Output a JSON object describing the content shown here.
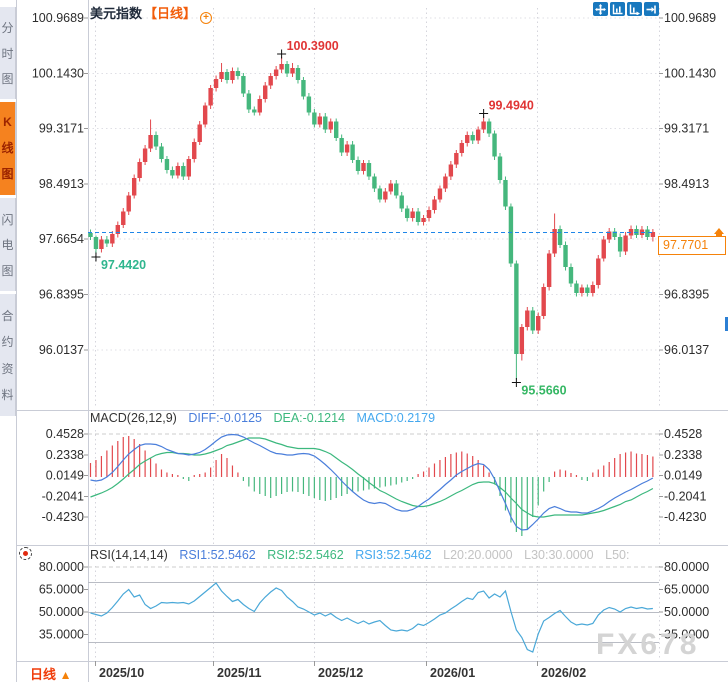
{
  "sidebar": {
    "tabs": [
      {
        "label": "分时图",
        "active": false
      },
      {
        "label": "K线图",
        "active": true
      },
      {
        "label": "闪电图",
        "active": false
      },
      {
        "label": "合约资料",
        "active": false
      }
    ]
  },
  "header": {
    "symbol": "美元指数",
    "period_tag": "【日线】"
  },
  "toolbar_icons": [
    "pan-icon",
    "axis-chart-icon",
    "axis-arrow-icon",
    "step-forward-icon"
  ],
  "bottom_bar": {
    "period_label": "日线",
    "months": [
      "2025/10",
      "2025/11",
      "2025/12",
      "2026/01",
      "2026/02"
    ]
  },
  "price_tag": {
    "value": "97.7701"
  },
  "watermark": "FX678",
  "colors": {
    "up": "#e2484d",
    "down": "#45b77d",
    "diff_line": "#4a7edb",
    "dea_line": "#3cb87e",
    "rsi_line": "#4aa8d8",
    "accent_orange": "#f5820a",
    "icon_blue": "#1878be",
    "annotation_up": "#e03535",
    "annotation_down": "#35b77e",
    "dashed_price_line": "#1e86e8"
  },
  "chart_data": {
    "type": "candlestick",
    "title": "美元指数",
    "period": "日线",
    "y_axis_labels": [
      "100.9689",
      "100.1430",
      "99.3171",
      "98.4913",
      "97.6654",
      "96.8395",
      "96.0137"
    ],
    "y_axis_values": [
      100.9689,
      100.143,
      99.3171,
      98.4913,
      97.6654,
      96.8395,
      96.0137
    ],
    "last_price": 97.7701,
    "annotations": [
      {
        "text": "100.3900",
        "index": 35,
        "price": 100.39,
        "side": "high",
        "color": "#e03535"
      },
      {
        "text": "99.4940",
        "index": 72,
        "price": 99.494,
        "side": "high",
        "color": "#e03535"
      },
      {
        "text": "97.4420",
        "index": 1,
        "price": 97.442,
        "side": "low",
        "color": "#2fb68e"
      },
      {
        "text": "95.5660",
        "index": 78,
        "price": 95.566,
        "side": "low",
        "color": "#35b764"
      }
    ],
    "candles": {
      "open": [
        97.76,
        97.7,
        97.52,
        97.66,
        97.6,
        97.74,
        97.88,
        98.08,
        98.32,
        98.58,
        98.82,
        99.02,
        99.22,
        99.05,
        98.86,
        98.7,
        98.62,
        98.76,
        98.6,
        98.86,
        99.12,
        99.38,
        99.66,
        99.92,
        100.06,
        100.16,
        100.04,
        100.18,
        100.1,
        99.84,
        99.6,
        99.56,
        99.76,
        99.96,
        100.1,
        100.2,
        100.28,
        100.14,
        100.22,
        100.04,
        99.8,
        99.56,
        99.38,
        99.5,
        99.3,
        99.42,
        99.18,
        98.96,
        99.08,
        98.85,
        98.68,
        98.8,
        98.6,
        98.42,
        98.26,
        98.38,
        98.5,
        98.32,
        98.12,
        97.98,
        98.08,
        97.92,
        97.98,
        98.1,
        98.26,
        98.42,
        98.6,
        98.78,
        98.95,
        99.1,
        99.22,
        99.14,
        99.3,
        99.42,
        99.24,
        98.9,
        98.55,
        98.15,
        97.3,
        95.95,
        96.35,
        96.6,
        96.3,
        96.52,
        96.95,
        97.45,
        97.82,
        97.58,
        97.25,
        97.0,
        96.86,
        96.94,
        96.86,
        96.98,
        97.38,
        97.66,
        97.78,
        97.7,
        97.48,
        97.72,
        97.82,
        97.73,
        97.81,
        97.7
      ],
      "high": [
        97.81,
        97.72,
        97.71,
        97.71,
        97.79,
        97.93,
        98.13,
        98.37,
        98.63,
        98.87,
        99.07,
        99.45,
        99.27,
        99.1,
        98.91,
        98.75,
        98.81,
        98.81,
        98.91,
        99.17,
        99.43,
        99.71,
        99.97,
        100.11,
        100.3,
        100.21,
        100.23,
        100.23,
        100.15,
        99.89,
        99.65,
        99.81,
        100.01,
        100.15,
        100.25,
        100.39,
        100.33,
        100.3,
        100.27,
        100.09,
        99.85,
        99.61,
        99.55,
        99.55,
        99.47,
        99.47,
        99.23,
        99.13,
        99.13,
        98.9,
        98.85,
        98.85,
        98.65,
        98.47,
        98.43,
        98.55,
        98.55,
        98.37,
        98.17,
        98.13,
        98.13,
        98.03,
        98.15,
        98.31,
        98.47,
        98.65,
        98.83,
        99.0,
        99.15,
        99.27,
        99.27,
        99.35,
        99.494,
        99.47,
        99.29,
        98.95,
        98.6,
        98.2,
        97.35,
        96.4,
        96.65,
        96.65,
        96.57,
        97.0,
        97.5,
        98.05,
        97.87,
        97.63,
        97.3,
        97.05,
        96.99,
        96.99,
        97.03,
        97.43,
        97.71,
        97.83,
        97.83,
        97.75,
        97.77,
        97.87,
        97.87,
        97.86,
        97.86,
        97.82
      ],
      "low": [
        97.65,
        97.442,
        97.47,
        97.55,
        97.55,
        97.69,
        97.83,
        98.03,
        98.27,
        98.53,
        98.77,
        98.97,
        99.0,
        98.81,
        98.65,
        98.57,
        98.57,
        98.55,
        98.55,
        98.81,
        99.07,
        99.33,
        99.61,
        99.87,
        100.01,
        99.99,
        99.99,
        100.05,
        99.79,
        99.55,
        99.51,
        99.51,
        99.71,
        99.91,
        100.05,
        100.15,
        100.09,
        100.09,
        99.99,
        99.75,
        99.51,
        99.33,
        99.33,
        99.25,
        99.25,
        99.13,
        98.91,
        98.91,
        98.8,
        98.63,
        98.63,
        98.55,
        98.37,
        98.21,
        98.21,
        98.33,
        98.27,
        98.07,
        97.93,
        97.93,
        97.87,
        97.87,
        97.93,
        98.05,
        98.21,
        98.37,
        98.55,
        98.73,
        98.9,
        99.05,
        99.09,
        99.09,
        99.25,
        99.19,
        98.85,
        98.5,
        98.1,
        97.25,
        95.566,
        95.85,
        96.3,
        96.25,
        96.25,
        96.47,
        96.9,
        97.4,
        97.53,
        97.2,
        96.95,
        96.81,
        96.81,
        96.81,
        96.81,
        96.93,
        97.33,
        97.61,
        97.65,
        97.4,
        97.43,
        97.67,
        97.68,
        97.68,
        97.65,
        97.63
      ],
      "close": [
        97.7,
        97.52,
        97.66,
        97.6,
        97.74,
        97.88,
        98.08,
        98.32,
        98.58,
        98.82,
        99.02,
        99.22,
        99.05,
        98.86,
        98.7,
        98.62,
        98.76,
        98.6,
        98.86,
        99.12,
        99.38,
        99.66,
        99.92,
        100.06,
        100.16,
        100.04,
        100.18,
        100.1,
        99.84,
        99.6,
        99.56,
        99.76,
        99.96,
        100.1,
        100.2,
        100.28,
        100.14,
        100.22,
        100.04,
        99.8,
        99.56,
        99.38,
        99.5,
        99.3,
        99.42,
        99.18,
        98.96,
        99.08,
        98.85,
        98.68,
        98.8,
        98.6,
        98.42,
        98.26,
        98.38,
        98.5,
        98.32,
        98.12,
        97.98,
        98.08,
        97.92,
        97.98,
        98.1,
        98.26,
        98.42,
        98.6,
        98.78,
        98.95,
        99.1,
        99.22,
        99.14,
        99.3,
        99.42,
        99.24,
        98.9,
        98.55,
        98.15,
        97.3,
        95.95,
        96.35,
        96.6,
        96.3,
        96.52,
        96.95,
        97.45,
        97.82,
        97.58,
        97.25,
        97.0,
        96.86,
        96.94,
        96.86,
        96.98,
        97.38,
        97.66,
        97.78,
        97.7,
        97.48,
        97.72,
        97.82,
        97.73,
        97.81,
        97.7,
        97.77
      ]
    },
    "macd": {
      "label": "MACD(26,12,9)",
      "diff_label": "DIFF:-0.0125",
      "dea_label": "DEA:-0.1214",
      "macd_label": "MACD:0.2179",
      "axis_labels": [
        "0.4528",
        "0.2338",
        "0.0149",
        "-0.2041",
        "-0.4230"
      ],
      "axis_values": [
        0.4528,
        0.2338,
        0.0149,
        -0.2041,
        -0.423
      ],
      "diff": [
        -0.03,
        -0.04,
        -0.03,
        0.0,
        0.05,
        0.11,
        0.18,
        0.24,
        0.29,
        0.33,
        0.35,
        0.35,
        0.34,
        0.32,
        0.29,
        0.27,
        0.25,
        0.24,
        0.23,
        0.24,
        0.26,
        0.29,
        0.33,
        0.38,
        0.42,
        0.44,
        0.45,
        0.44,
        0.42,
        0.39,
        0.36,
        0.33,
        0.3,
        0.27,
        0.25,
        0.24,
        0.23,
        0.23,
        0.24,
        0.25,
        0.24,
        0.22,
        0.18,
        0.13,
        0.08,
        0.02,
        -0.04,
        -0.1,
        -0.15,
        -0.2,
        -0.24,
        -0.27,
        -0.28,
        -0.27,
        -0.28,
        -0.31,
        -0.34,
        -0.36,
        -0.36,
        -0.34,
        -0.31,
        -0.27,
        -0.23,
        -0.18,
        -0.13,
        -0.08,
        -0.03,
        0.02,
        0.06,
        0.09,
        0.12,
        0.14,
        0.13,
        0.08,
        -0.02,
        -0.15,
        -0.28,
        -0.42,
        -0.52,
        -0.56,
        -0.55,
        -0.5,
        -0.44,
        -0.38,
        -0.33,
        -0.31,
        -0.33,
        -0.36,
        -0.37,
        -0.37,
        -0.38,
        -0.38,
        -0.36,
        -0.33,
        -0.3,
        -0.26,
        -0.22,
        -0.19,
        -0.16,
        -0.13,
        -0.1,
        -0.07,
        -0.04,
        -0.0125
      ],
      "dea": [
        -0.21,
        -0.19,
        -0.17,
        -0.14,
        -0.11,
        -0.07,
        -0.02,
        0.03,
        0.08,
        0.13,
        0.17,
        0.2,
        0.23,
        0.25,
        0.26,
        0.26,
        0.25,
        0.25,
        0.24,
        0.23,
        0.23,
        0.24,
        0.26,
        0.28,
        0.3,
        0.33,
        0.35,
        0.37,
        0.39,
        0.41,
        0.41,
        0.41,
        0.4,
        0.38,
        0.36,
        0.34,
        0.32,
        0.31,
        0.3,
        0.3,
        0.3,
        0.3,
        0.29,
        0.27,
        0.24,
        0.2,
        0.16,
        0.12,
        0.08,
        0.03,
        -0.01,
        -0.06,
        -0.1,
        -0.14,
        -0.17,
        -0.2,
        -0.23,
        -0.26,
        -0.28,
        -0.3,
        -0.31,
        -0.31,
        -0.3,
        -0.28,
        -0.26,
        -0.23,
        -0.2,
        -0.17,
        -0.14,
        -0.11,
        -0.08,
        -0.06,
        -0.05,
        -0.05,
        -0.07,
        -0.11,
        -0.16,
        -0.22,
        -0.28,
        -0.34,
        -0.38,
        -0.41,
        -0.42,
        -0.42,
        -0.41,
        -0.4,
        -0.4,
        -0.4,
        -0.4,
        -0.4,
        -0.4,
        -0.39,
        -0.38,
        -0.37,
        -0.35,
        -0.33,
        -0.31,
        -0.29,
        -0.26,
        -0.24,
        -0.21,
        -0.18,
        -0.15,
        -0.1214
      ],
      "hist": [
        0.15,
        0.18,
        0.22,
        0.28,
        0.33,
        0.38,
        0.42,
        0.43,
        0.4,
        0.35,
        0.28,
        0.2,
        0.14,
        0.08,
        0.05,
        0.03,
        0.02,
        -0.02,
        -0.04,
        0.02,
        0.03,
        0.05,
        0.1,
        0.18,
        0.24,
        0.2,
        0.12,
        0.05,
        -0.04,
        -0.1,
        -0.15,
        -0.18,
        -0.2,
        -0.22,
        -0.2,
        -0.18,
        -0.16,
        -0.15,
        -0.16,
        -0.18,
        -0.2,
        -0.22,
        -0.24,
        -0.25,
        -0.24,
        -0.22,
        -0.2,
        -0.18,
        -0.16,
        -0.15,
        -0.14,
        -0.13,
        -0.12,
        -0.11,
        -0.1,
        -0.09,
        -0.08,
        -0.06,
        -0.04,
        -0.02,
        0.03,
        0.06,
        0.1,
        0.14,
        0.18,
        0.21,
        0.24,
        0.26,
        0.27,
        0.25,
        0.22,
        0.18,
        0.12,
        0.05,
        -0.08,
        -0.2,
        -0.35,
        -0.48,
        -0.58,
        -0.62,
        -0.55,
        -0.42,
        -0.3,
        -0.15,
        -0.05,
        0.06,
        0.08,
        0.07,
        0.04,
        0.02,
        -0.03,
        -0.04,
        0.05,
        0.08,
        0.12,
        0.16,
        0.2,
        0.24,
        0.26,
        0.27,
        0.25,
        0.24,
        0.23,
        0.2179
      ]
    },
    "rsi": {
      "label": "RSI(14,14,14)",
      "rsi1_label": "RSI1:52.5462",
      "rsi2_label": "RSI2:52.5462",
      "rsi3_label": "RSI3:52.5462",
      "l20_label": "L20:20.0000",
      "l30_label": "L30:30.0000",
      "l50_label": "L50:",
      "axis_labels": [
        "80.0000",
        "65.0000",
        "50.0000",
        "35.0000"
      ],
      "axis_values": [
        80,
        65,
        50,
        35
      ],
      "values": [
        49.5,
        48.5,
        47.5,
        49.5,
        53,
        57.5,
        62,
        65,
        60,
        61.5,
        55,
        52.5,
        54,
        56.5,
        56,
        56.5,
        56,
        56.5,
        55.5,
        57.5,
        60.5,
        63.5,
        66.5,
        69.5,
        64,
        60.5,
        57,
        58.5,
        55,
        52.5,
        50.5,
        56,
        60,
        63.5,
        66,
        64.5,
        60,
        57,
        53.5,
        52,
        50,
        48,
        49.5,
        47.5,
        49,
        46.5,
        44.5,
        46,
        44,
        42.5,
        44,
        42,
        43.5,
        44.5,
        41,
        38,
        37.5,
        38,
        37.5,
        39,
        42,
        41,
        43,
        45.5,
        48,
        49.5,
        52,
        54.5,
        57,
        59.5,
        58.5,
        63,
        64,
        59.5,
        62,
        60,
        64,
        50.5,
        38,
        33,
        25,
        23.5,
        35.5,
        44,
        46.5,
        49,
        51,
        47,
        43.5,
        41.5,
        42,
        41.5,
        42.5,
        48,
        51.5,
        53,
        52,
        50,
        52.5,
        53.5,
        52.5,
        53,
        52,
        52.5
      ]
    }
  }
}
